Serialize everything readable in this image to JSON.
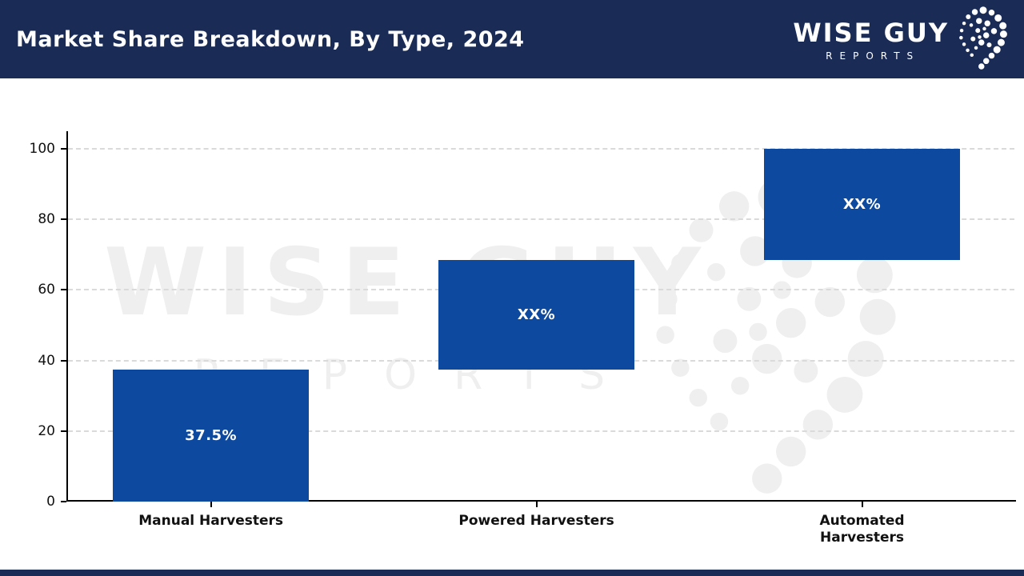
{
  "header": {
    "title": "Market Share Breakdown, By Type, 2024",
    "logo": {
      "wordmark": "WISE GUY",
      "subtitle": "REPORTS"
    }
  },
  "watermark": {
    "wordmark": "WISE GUY",
    "subtitle": "REPORTS"
  },
  "colors": {
    "header_bg": "#1a2b56",
    "footer_bg": "#1a2b56",
    "bar": "#0d4a9f",
    "bar_label": "#ffffff",
    "watermark": "#efefef"
  },
  "chart_data": {
    "type": "bar",
    "subtype": "waterfall",
    "title": "Market Share Breakdown, By Type, 2024",
    "categories": [
      "Manual Harvesters",
      "Powered Harvesters",
      "Automated\nHarvesters"
    ],
    "bars": [
      {
        "category": "Manual Harvesters",
        "start": 0,
        "end": 37.5,
        "value_label": "37.5%"
      },
      {
        "category": "Powered Harvesters",
        "start": 37.5,
        "end": 68.5,
        "value_label": "XX%"
      },
      {
        "category": "Automated Harvesters",
        "start": 68.5,
        "end": 100,
        "value_label": "XX%"
      }
    ],
    "ylim": [
      0,
      100
    ],
    "y_ticks": [
      0,
      20,
      40,
      60,
      80,
      100
    ],
    "xlabel": "",
    "ylabel": "",
    "grid": "horizontal-dashed",
    "legend": "none"
  }
}
